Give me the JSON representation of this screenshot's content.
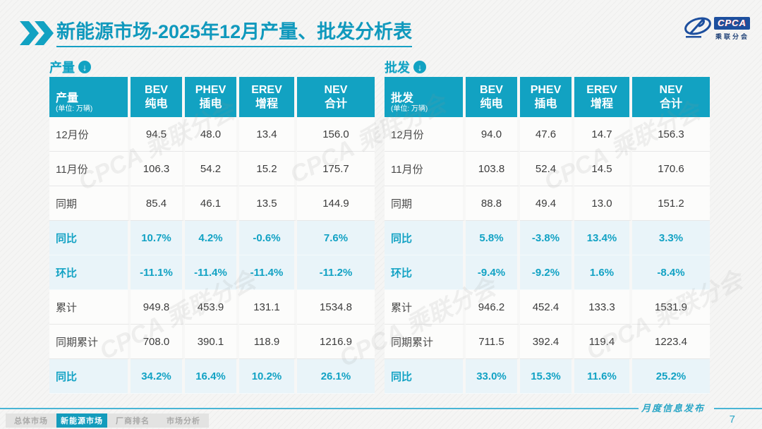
{
  "header": {
    "title_primary": "新能源市场",
    "title_secondary": "-2025年12月产量、批发分析表",
    "logo": {
      "abbr": "CPCA",
      "cn": "乘联分会"
    }
  },
  "watermark": {
    "text": "CPCA 乘联分会"
  },
  "colors": {
    "accent_teal": "#12a2c2",
    "highlight_row_bg": "#e9f4f9",
    "footer_line": "#49b5d5",
    "logo_blue": "#1d4f9e"
  },
  "tables": [
    {
      "section_label": "产量",
      "corner_label": "产量",
      "unit": "(单位: 万辆)",
      "columns": [
        {
          "line1": "BEV",
          "line2": "纯电"
        },
        {
          "line1": "PHEV",
          "line2": "插电"
        },
        {
          "line1": "EREV",
          "line2": "增程"
        },
        {
          "line1": "NEV",
          "line2": "合计"
        }
      ],
      "rows": [
        {
          "label": "12月份",
          "highlight": false,
          "values": [
            "94.5",
            "48.0",
            "13.4",
            "156.0"
          ]
        },
        {
          "label": "11月份",
          "highlight": false,
          "values": [
            "106.3",
            "54.2",
            "15.2",
            "175.7"
          ]
        },
        {
          "label": "同期",
          "highlight": false,
          "values": [
            "85.4",
            "46.1",
            "13.5",
            "144.9"
          ]
        },
        {
          "label": "同比",
          "highlight": true,
          "values": [
            "10.7%",
            "4.2%",
            "-0.6%",
            "7.6%"
          ]
        },
        {
          "label": "环比",
          "highlight": true,
          "values": [
            "-11.1%",
            "-11.4%",
            "-11.4%",
            "-11.2%"
          ]
        },
        {
          "label": "累计",
          "highlight": false,
          "values": [
            "949.8",
            "453.9",
            "131.1",
            "1534.8"
          ]
        },
        {
          "label": "同期累计",
          "highlight": false,
          "values": [
            "708.0",
            "390.1",
            "118.9",
            "1216.9"
          ]
        },
        {
          "label": "同比",
          "highlight": true,
          "values": [
            "34.2%",
            "16.4%",
            "10.2%",
            "26.1%"
          ]
        }
      ]
    },
    {
      "section_label": "批发",
      "corner_label": "批发",
      "unit": "(单位: 万辆)",
      "columns": [
        {
          "line1": "BEV",
          "line2": "纯电"
        },
        {
          "line1": "PHEV",
          "line2": "插电"
        },
        {
          "line1": "EREV",
          "line2": "增程"
        },
        {
          "line1": "NEV",
          "line2": "合计"
        }
      ],
      "rows": [
        {
          "label": "12月份",
          "highlight": false,
          "values": [
            "94.0",
            "47.6",
            "14.7",
            "156.3"
          ]
        },
        {
          "label": "11月份",
          "highlight": false,
          "values": [
            "103.8",
            "52.4",
            "14.5",
            "170.6"
          ]
        },
        {
          "label": "同期",
          "highlight": false,
          "values": [
            "88.8",
            "49.4",
            "13.0",
            "151.2"
          ]
        },
        {
          "label": "同比",
          "highlight": true,
          "values": [
            "5.8%",
            "-3.8%",
            "13.4%",
            "3.3%"
          ]
        },
        {
          "label": "环比",
          "highlight": true,
          "values": [
            "-9.4%",
            "-9.2%",
            "1.6%",
            "-8.4%"
          ]
        },
        {
          "label": "累计",
          "highlight": false,
          "values": [
            "946.2",
            "452.4",
            "133.3",
            "1531.9"
          ]
        },
        {
          "label": "同期累计",
          "highlight": false,
          "values": [
            "711.5",
            "392.4",
            "119.4",
            "1223.4"
          ]
        },
        {
          "label": "同比",
          "highlight": true,
          "values": [
            "33.0%",
            "15.3%",
            "11.6%",
            "25.2%"
          ]
        }
      ]
    }
  ],
  "footer": {
    "tabs": [
      {
        "label": "总体市场",
        "active": false
      },
      {
        "label": "新能源市场",
        "active": true
      },
      {
        "label": "厂商排名",
        "active": false
      },
      {
        "label": "市场分析",
        "active": false
      }
    ],
    "publication": "月度信息发布",
    "page_number": "7"
  }
}
